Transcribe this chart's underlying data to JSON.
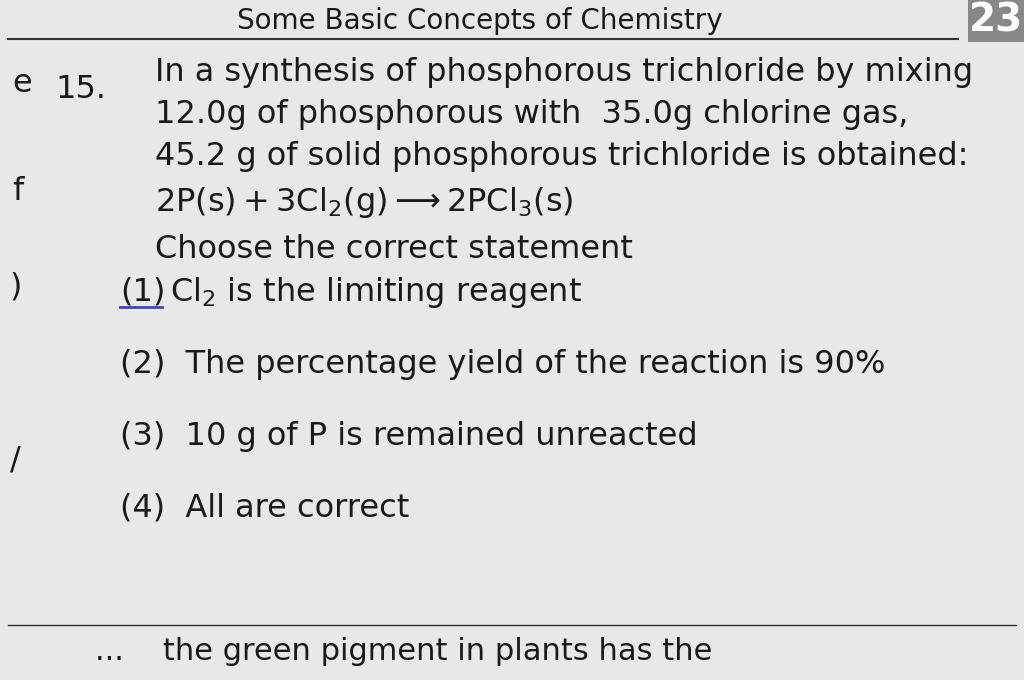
{
  "bg_color": "#e8e8e8",
  "header_text": "Some Basic Concepts of Chemistry",
  "page_number": "23",
  "page_num_bg": "#888888",
  "header_line_color": "#333333",
  "question_number": "15.",
  "question_text_line1": "In a synthesis of phosphorous trichloride by mixing",
  "question_text_line2": "12.0g of phosphorous with  35.0g chlorine gas,",
  "question_text_line3": "45.2 g of solid phosphorous trichloride is obtained:",
  "sub_heading": "Choose the correct statement",
  "option2": "(2)  The percentage yield of the reaction is 90%",
  "option3": "(3)  10 g of P is remained unreacted",
  "option4": "(4)  All are correct",
  "bottom_partial": "...    the green pigment in plants has the",
  "text_color": "#1a1a1a",
  "title_color": "#1a1a1a",
  "underline_color": "#4444bb",
  "header_fontsize": 20,
  "body_fontsize": 23,
  "pn_box_color": "#888888"
}
